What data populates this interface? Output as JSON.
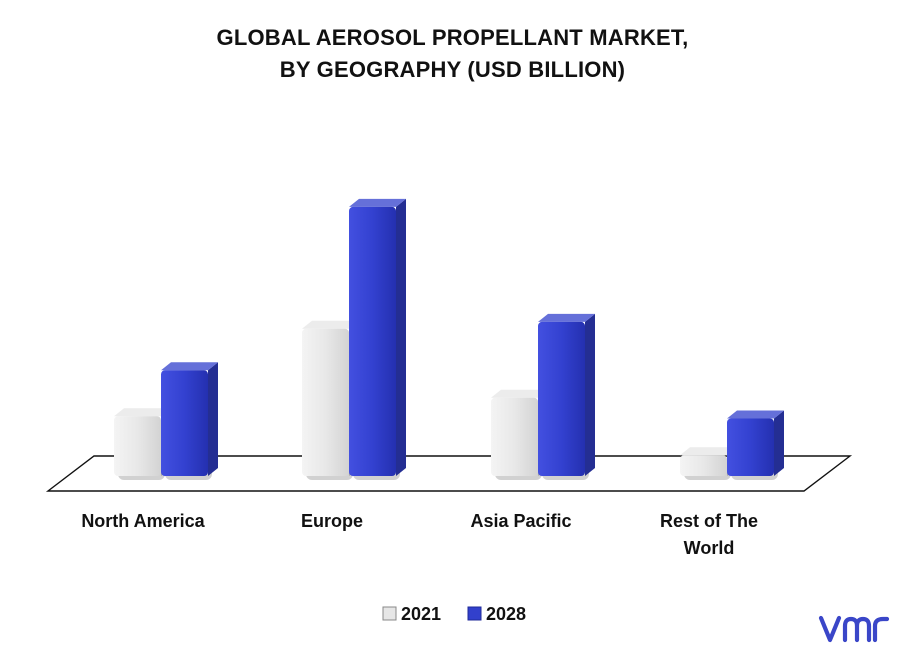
{
  "chart_data": {
    "type": "bar",
    "title_lines": [
      "GLOBAL AEROSOL PROPELLANT MARKET,",
      "BY GEOGRAPHY (USD BILLION)"
    ],
    "categories": [
      [
        "North America"
      ],
      [
        "Europe"
      ],
      [
        "Asia Pacific"
      ],
      [
        "Rest of The",
        "World"
      ]
    ],
    "series": [
      {
        "name": "2021",
        "color": "#e6e6e6",
        "values": [
          2.6,
          6.4,
          3.4,
          0.9
        ]
      },
      {
        "name": "2028",
        "color": "#3240cc",
        "values": [
          4.6,
          11.7,
          6.7,
          2.5
        ]
      }
    ],
    "ylim": [
      0,
      12
    ],
    "grid": false,
    "legend_position": "bottom-center",
    "style": "3d-column"
  },
  "branding": {
    "logo_icon": "vmr-logo-icon",
    "logo_color": "#3a46c8"
  }
}
